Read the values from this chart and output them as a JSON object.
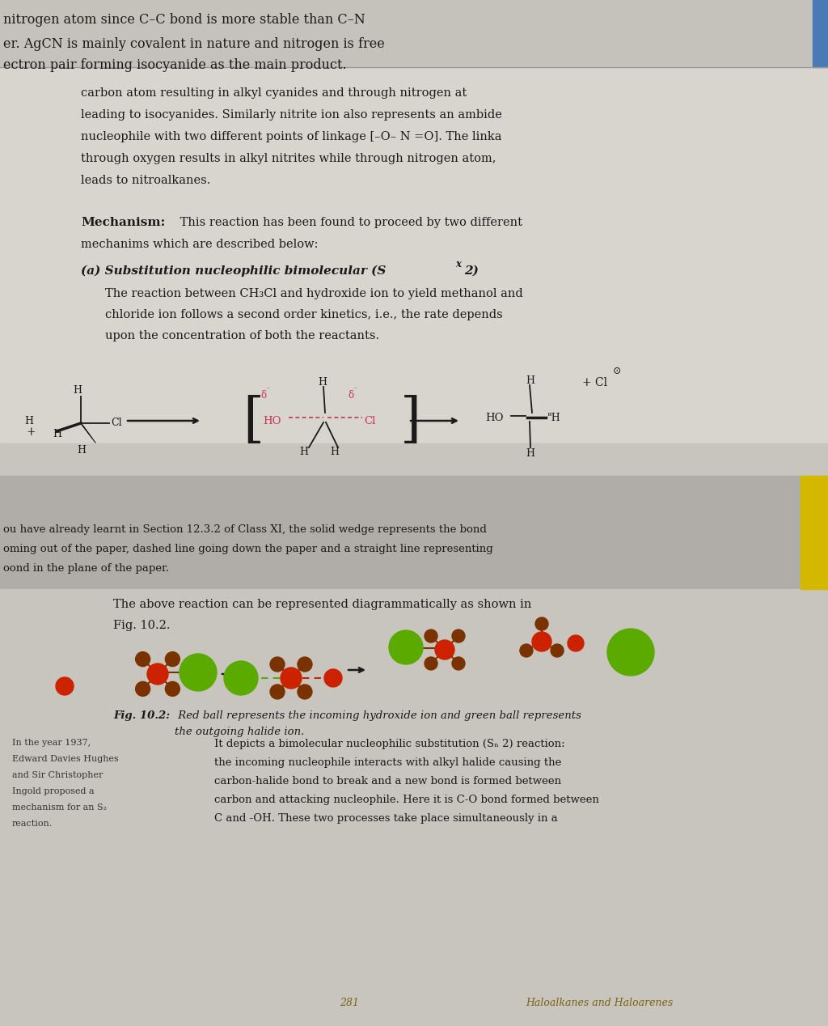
{
  "bg_top_color": "#c8c5c0",
  "bg_separator_line_color": "#aaaaaa",
  "bg_main_color": "#d8d5d0",
  "bg_note_band_color": "#b8b5b0",
  "bg_bottom_color": "#cccccc",
  "yellow_tab": "#d4b800",
  "blue_strip": "#4a7ab5",
  "text_dark": "#1a1a1a",
  "text_pink": "#cc3355",
  "top_lines": [
    "nitrogen atom since C–C bond is more stable than C–N",
    "er. AgCN is mainly covalent in nature and nitrogen is free",
    "ectron pair forming isocyanide as the main product."
  ],
  "para1_indent": 100,
  "para1_lines": [
    "carbon atom resulting in alkyl cyanides and through nitrogen at",
    "leading to isocyanides. Similarly nitrite ion also represents an ambide",
    "nucleophile with two different points of linkage [–O– N =O]. The linka",
    "through oxygen results in alkyl nitrites while through nitrogen atom,",
    "leads to nitroalkanes."
  ],
  "note_lines": [
    "ou have already learnt in Section 12.3.2 of Class XI, the solid wedge represents the bond",
    "oming out of the paper, dashed line going down the paper and a straight line representing",
    "oond in the plane of the paper."
  ],
  "above_rxn_text": "The above reaction can be represented diagrammatically as shown in",
  "fig_label": "Fig. 10.2.",
  "fig_caption_bold": "Fig. 10.2:",
  "fig_caption_rest1": " Red ball represents the incoming hydroxide ion and green ball represents",
  "fig_caption_rest2": "the outgoing halide ion.",
  "bottom_para_lines": [
    "It depicts a bimolecular nucleophilic substitution (Sₙ 2) reaction:",
    "the incoming nucleophile interacts with alkyl halide causing the",
    "carbon-halide bond to break and a new bond is formed between",
    "carbon and attacking nucleophile. Here it is C-O bond formed between",
    "C and -OH. These two processes take place simultaneously in a"
  ],
  "side_note_lines": [
    "In the year 1937,",
    "Edward Davies Hughes",
    "and Sir Christopher",
    "Ingold proposed a",
    "mechanism for an S₂",
    "reaction."
  ],
  "page_num": "281",
  "bottom_right": "Haloalkanes and Haloarenes",
  "ball_red": "#cc2200",
  "ball_dark": "#7a3300",
  "ball_green": "#5aaa00",
  "ball_orange_red": "#cc4400"
}
